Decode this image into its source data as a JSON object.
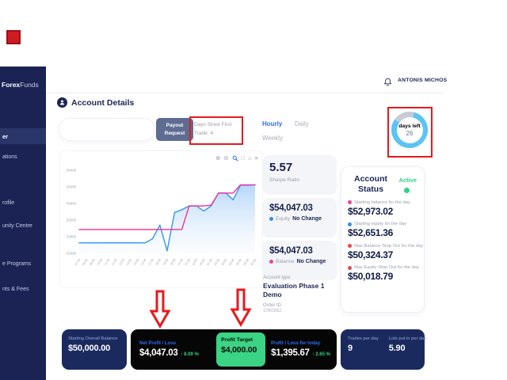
{
  "brand": {
    "logo_bold": "Forex",
    "logo_light": "Funds"
  },
  "sidebar": {
    "items": [
      {
        "label": "er",
        "active": true
      },
      {
        "label": "ations",
        "active": false
      },
      {
        "label": "rofile",
        "active": false
      },
      {
        "label": "unity Centre",
        "active": false
      },
      {
        "label": "e Programs",
        "active": false
      },
      {
        "label": "nts & Fees",
        "active": false
      }
    ]
  },
  "header": {
    "user": "ANTONIS MICHOS"
  },
  "page": {
    "title": "Account Details"
  },
  "controls": {
    "payout_line1": "Payout",
    "payout_line2": "Request",
    "days_note_line1": "Days Since First",
    "days_note_line2": "Trade: 4",
    "tabs": [
      {
        "label": "Hourly",
        "active": true
      },
      {
        "label": "Daily",
        "active": false
      },
      {
        "label": "Weekly",
        "active": false
      }
    ]
  },
  "modebar": [
    {
      "name": "zoom-in-icon",
      "glyph": "⊕"
    },
    {
      "name": "zoom-out-icon",
      "glyph": "⊖"
    },
    {
      "name": "zoom-tool-icon",
      "glyph": "",
      "active": true
    },
    {
      "name": "pan-icon",
      "glyph": "□"
    },
    {
      "name": "home-icon",
      "glyph": "⌂"
    },
    {
      "name": "menu-icon",
      "glyph": "≡"
    }
  ],
  "chart_data": {
    "type": "area",
    "title": "",
    "xlabel": "",
    "ylabel": "",
    "legend": "none",
    "grid": false,
    "ylim": [
      52400,
      54400
    ],
    "yticks": [
      52400,
      52800,
      53200,
      53600,
      54000,
      54400
    ],
    "x": [
      "07:00",
      "08:00",
      "09:00",
      "10:00",
      "11:00",
      "12:00",
      "13:00",
      "14:00",
      "15:00",
      "16:00",
      "17:00",
      "18:00",
      "19:00",
      "20:00",
      "21:00",
      "22:00",
      "23:00",
      "00:00",
      "01:00",
      "02:00",
      "03:00",
      "04:00",
      "05:00",
      "06:00",
      "07:00"
    ],
    "series": [
      {
        "name": "Equity",
        "color": "#3d9af0",
        "fill": true,
        "values": [
          52651,
          52651,
          52651,
          52651,
          52651,
          52651,
          52651,
          52651,
          52651,
          52651,
          52750,
          53080,
          52460,
          53380,
          53450,
          53540,
          53540,
          53420,
          53540,
          53850,
          53850,
          53690,
          54040,
          54040,
          54047
        ]
      },
      {
        "name": "Balance",
        "color": "#ee3fa5",
        "fill": false,
        "values": [
          52973,
          52973,
          52973,
          52973,
          52973,
          52973,
          52973,
          52973,
          52973,
          52973,
          52973,
          52973,
          52973,
          52973,
          52973,
          53540,
          53540,
          53540,
          53560,
          53850,
          53850,
          53850,
          54047,
          54047,
          54047
        ]
      }
    ]
  },
  "stats": {
    "sharpe": {
      "value": "5.57",
      "label": "Sharpe Ratio"
    },
    "equity": {
      "value": "$54,047.03",
      "label": "Equity",
      "change": "No Change"
    },
    "balance": {
      "value": "$54,047.03",
      "label": "Balance",
      "change": "No Change"
    }
  },
  "account": {
    "type_label": "Account type",
    "type": "Evaluation Phase 1 Demo",
    "order_label": "Order ID",
    "order_id": "1060882"
  },
  "days_left": {
    "label": "days left",
    "value": "26"
  },
  "status_panel": {
    "title": "Account Status",
    "status": "Active",
    "rows": [
      {
        "label": "Starting balance for the day",
        "value": "$52,973.02",
        "dot": "#f23f9f"
      },
      {
        "label": "Starting equity for the day",
        "value": "$52,651.36",
        "dot": "#2f8df5"
      },
      {
        "label": "Max Balance Stop Out for the day",
        "value": "$50,324.37",
        "dot": "#f04444"
      },
      {
        "label": "Max Equity Stop Out for the day",
        "value": "$50,018.79",
        "dot": "#f04444"
      }
    ]
  },
  "bottom": {
    "starting": {
      "label": "Starting Overall Balance",
      "value": "$50,000.00"
    },
    "net_profit": {
      "label": "Net Profit / Loss",
      "value": "$4,047.03",
      "change": "↑ 8.09 %"
    },
    "profit_target": {
      "label": "Profit Target",
      "value": "$4,000.00"
    },
    "today": {
      "label": "Profit / Loss for today",
      "value": "$1,395.67",
      "change": "↑ 2.65 %"
    },
    "trades": {
      "label": "Trades per day",
      "value": "9"
    },
    "lots": {
      "label": "Lots put in per day",
      "value": "5.90"
    }
  },
  "colors": {
    "accent_blue": "#2f6bff",
    "green": "#2fd283",
    "pink_line": "#ee3fa5",
    "blue_line": "#3d9af0",
    "annotation_red": "#e8191c",
    "navy": "#1b2a5e",
    "dot_blue": "#2f8df5",
    "dot_pink": "#f23f9f"
  }
}
